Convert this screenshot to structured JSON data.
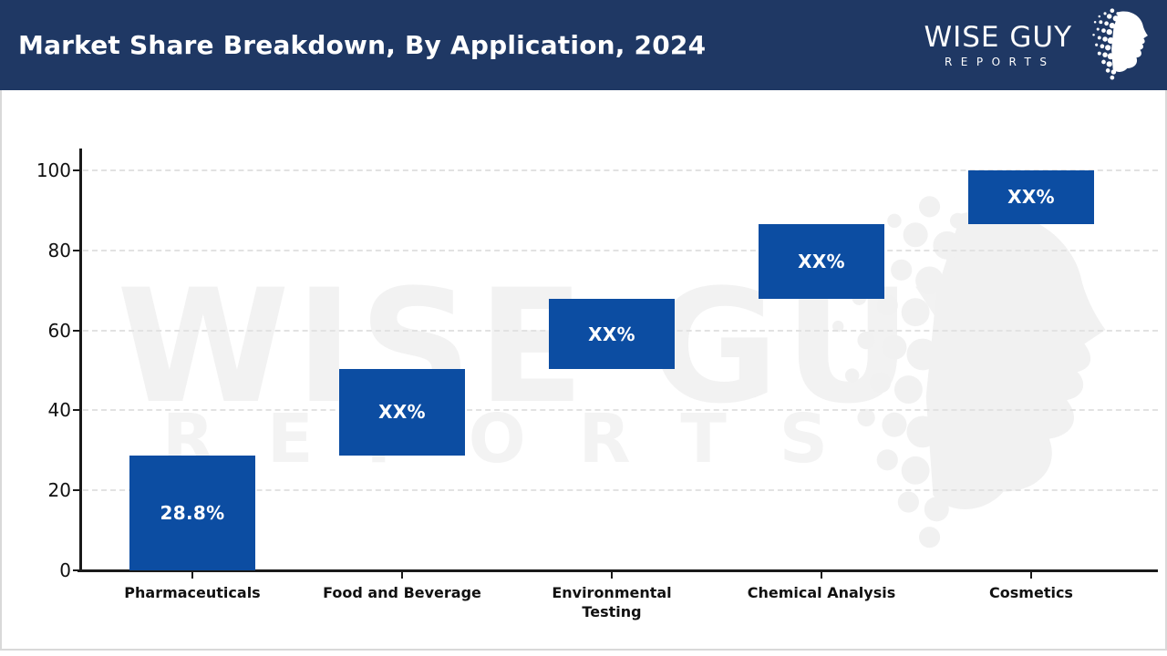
{
  "header": {
    "title": "Market Share Breakdown, By Application, 2024",
    "logo_line1": "WISE GUY",
    "logo_line2": "REPORTS"
  },
  "watermark": {
    "line1": "WISE GUY",
    "line2": "REPORTS"
  },
  "colors": {
    "header_bg": "#1F3864",
    "bar": "#0C4DA2",
    "grid": "#E2E2E2",
    "axis": "#1A1A1A",
    "bar_label": "#FFFFFF",
    "frame_border": "#D9D9D9",
    "watermark": "#F1F1F1"
  },
  "chart_data": {
    "type": "bar",
    "subtype": "waterfall",
    "title": "Market Share Breakdown, By Application, 2024",
    "xlabel": "",
    "ylabel": "",
    "categories": [
      "Pharmaceuticals",
      "Food and Beverage",
      "Environmental\nTesting",
      "Chemical Analysis",
      "Cosmetics"
    ],
    "segments": [
      {
        "category": "Pharmaceuticals",
        "label": "28.8%",
        "start": 0,
        "end": 28.8,
        "increment": 28.8
      },
      {
        "category": "Food and Beverage",
        "label": "XX%",
        "start": 28.8,
        "end": 50.3,
        "increment": 21.5
      },
      {
        "category": "Environmental Testing",
        "label": "XX%",
        "start": 50.3,
        "end": 67.9,
        "increment": 17.6
      },
      {
        "category": "Chemical Analysis",
        "label": "XX%",
        "start": 67.9,
        "end": 86.6,
        "increment": 18.7
      },
      {
        "category": "Cosmetics",
        "label": "XX%",
        "start": 86.6,
        "end": 100,
        "increment": 13.4
      }
    ],
    "yticks": [
      0,
      20,
      40,
      60,
      80,
      100
    ],
    "ylim": [
      0,
      105
    ],
    "grid": true,
    "grid_style": "dashed-horizontal",
    "legend": null,
    "bar_color": "#0C4DA2",
    "value_label_color": "#FFFFFF"
  }
}
